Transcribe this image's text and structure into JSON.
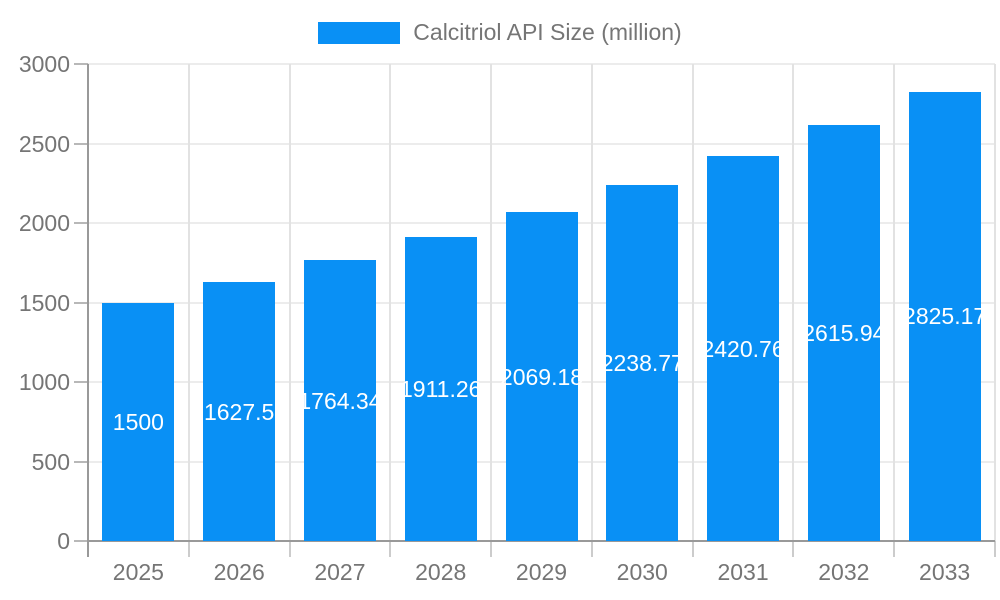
{
  "chart_data": {
    "type": "bar",
    "categories": [
      "2025",
      "2026",
      "2027",
      "2028",
      "2029",
      "2030",
      "2031",
      "2032",
      "2033"
    ],
    "series": [
      {
        "name": "Calcitriol API Size (million)",
        "color": "#0990f5",
        "values": [
          1500,
          1627.5,
          1764.34,
          1911.26,
          2069.18,
          2238.77,
          2420.76,
          2615.94,
          2825.17
        ]
      }
    ],
    "value_labels": [
      "1500",
      "1627.5",
      "1764.34",
      "1911.26",
      "2069.18",
      "2238.77",
      "2420.76",
      "2615.94",
      "2825.17"
    ],
    "title": "",
    "xlabel": "",
    "ylabel": "",
    "ylim": [
      0,
      3000
    ],
    "ytick_step": 500,
    "ytick_labels": [
      "0",
      "500",
      "1000",
      "1500",
      "2000",
      "2500",
      "3000"
    ],
    "grid": true,
    "legend_position": "top",
    "colors": {
      "bar": "#0990f5",
      "axis_line": "#999999",
      "grid_line_h": "#ececec",
      "grid_line_v": "#e2e2e2",
      "y_tick": "#b8b8b8",
      "x_tick": "#cccccc",
      "axis_label": "#757575",
      "value_label": "#ffffff",
      "background": "#ffffff"
    }
  }
}
